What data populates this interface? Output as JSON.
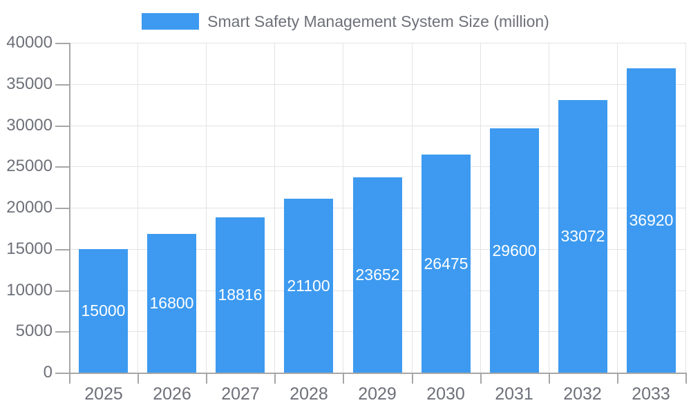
{
  "chart_data": {
    "type": "bar",
    "title": "Smart Safety Management System Size (million)",
    "legend": [
      "Smart Safety Management System Size (million)"
    ],
    "legend_position": "top",
    "categories": [
      "2025",
      "2026",
      "2027",
      "2028",
      "2029",
      "2030",
      "2031",
      "2032",
      "2033"
    ],
    "values": [
      15000,
      16800,
      18816,
      21100,
      23652,
      26475,
      29600,
      33072,
      36920
    ],
    "xlabel": "",
    "ylabel": "",
    "ylim": [
      0,
      40000
    ],
    "ytick_interval": 5000,
    "yticks": [
      0,
      5000,
      10000,
      15000,
      20000,
      25000,
      30000,
      35000,
      40000
    ],
    "grid": true,
    "bar_labels_inside": true
  },
  "colors": {
    "bar": "#3D9AF0",
    "bar_label": "#ffffff",
    "axis_text": "#6E7079",
    "axis_line": "#a6a6a6",
    "grid_line": "#e3e3e3",
    "background": "#ffffff"
  }
}
